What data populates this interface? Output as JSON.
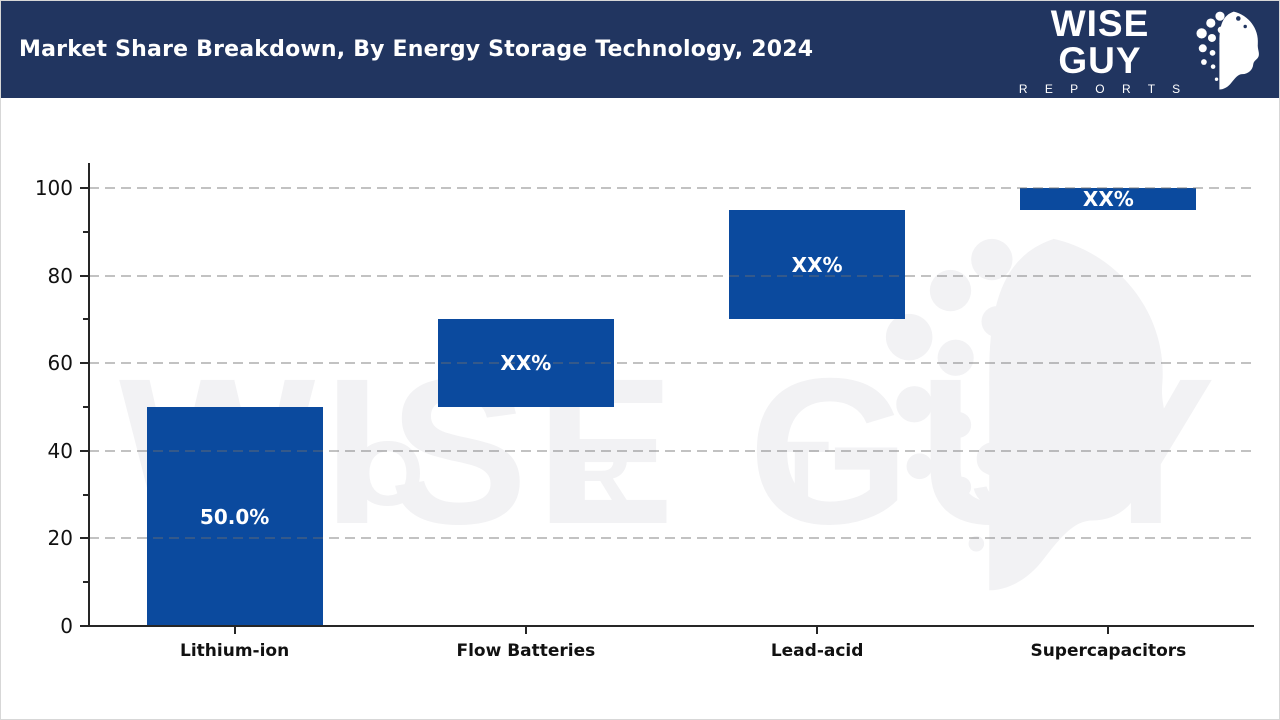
{
  "header": {
    "title": "Market Share Breakdown, By Energy Storage Technology, 2024",
    "logo": {
      "line1": "WISE GUY",
      "line2": "R E P O R T S"
    }
  },
  "watermark": {
    "line1": "WISE GUY",
    "line2": "P O R T S"
  },
  "chart_data": {
    "type": "bar",
    "subtype": "waterfall",
    "title": "Market Share Breakdown, By Energy Storage Technology, 2024",
    "categories": [
      "Lithium-ion",
      "Flow Batteries",
      "Lead-acid",
      "Supercapacitors"
    ],
    "segments": [
      {
        "category": "Lithium-ion",
        "start": 0,
        "end": 50,
        "label": "50.0%"
      },
      {
        "category": "Flow Batteries",
        "start": 50,
        "end": 70,
        "label": "XX%"
      },
      {
        "category": "Lead-acid",
        "start": 70,
        "end": 95,
        "label": "XX%"
      },
      {
        "category": "Supercapacitors",
        "start": 95,
        "end": 100,
        "label": "XX%"
      }
    ],
    "xlabel": "",
    "ylabel": "",
    "ylim": [
      0,
      105.7
    ],
    "yticks_major": [
      0,
      20,
      40,
      60,
      80,
      100
    ],
    "yticks_minor": [
      10,
      30,
      50,
      70,
      90
    ],
    "grid": "horizontal-dashed-over-bars",
    "legend": "none"
  },
  "colors": {
    "header_bg": "#213560",
    "bar_blue": "#0b4a9e",
    "axis": "#262626",
    "watermark": "#f2f2f4",
    "page_bg": "#ffffff"
  }
}
